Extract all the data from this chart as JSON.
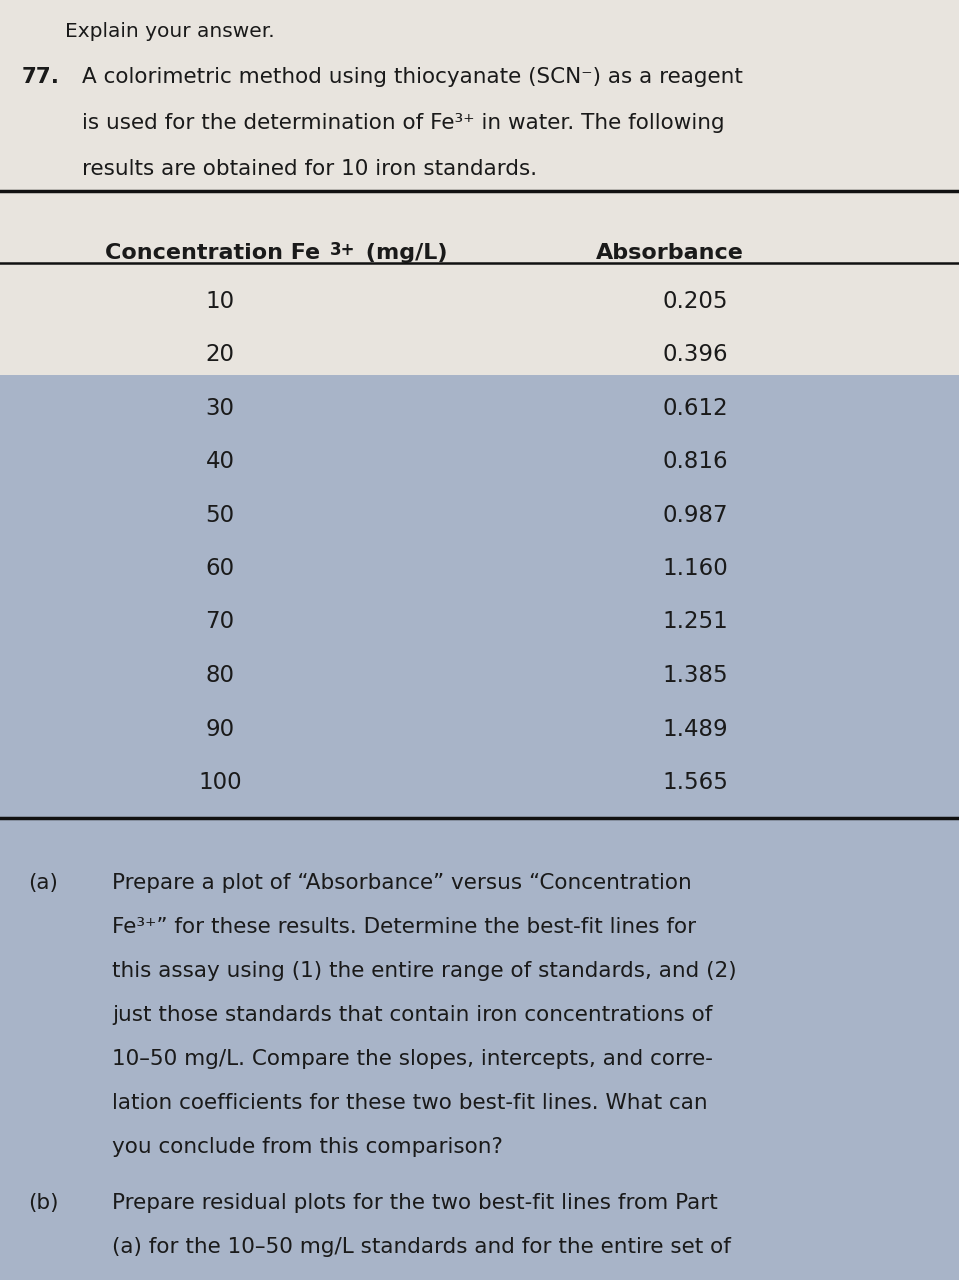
{
  "concentrations": [
    10,
    20,
    30,
    40,
    50,
    60,
    70,
    80,
    90,
    100
  ],
  "absorbances": [
    0.205,
    0.396,
    0.612,
    0.816,
    0.987,
    1.16,
    1.251,
    1.385,
    1.489,
    1.565
  ],
  "page_bg": "#e8e4de",
  "table_bg": "#a8b4c8",
  "text_color": "#1a1a1a",
  "header_bg": "#ddd8d0",
  "bottom_bg": "#b0bcd0"
}
